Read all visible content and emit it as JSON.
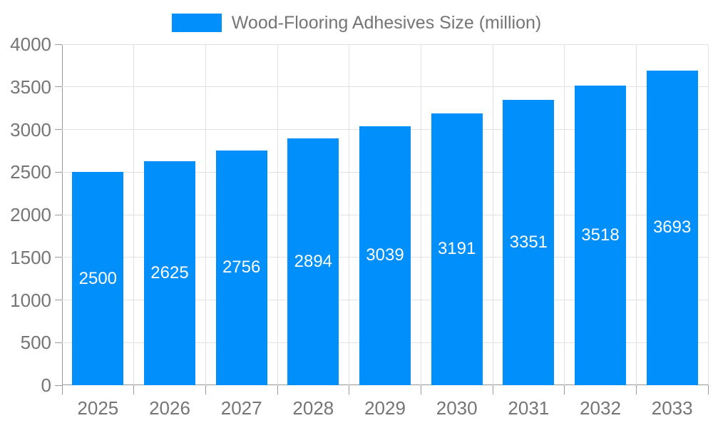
{
  "legend": {
    "label": "Wood-Flooring Adhesives Size (million)"
  },
  "colors": {
    "bar": "#008FFB",
    "grid": "#e2e2e2",
    "axis": "#9a9a9a",
    "axis_label": "#757575",
    "bar_label": "#ffffff",
    "background": "#ffffff"
  },
  "chart_data": {
    "type": "bar",
    "title": "Wood-Flooring Adhesives Size (million)",
    "categories": [
      "2025",
      "2026",
      "2027",
      "2028",
      "2029",
      "2030",
      "2031",
      "2032",
      "2033"
    ],
    "series": [
      {
        "name": "Wood-Flooring Adhesives Size (million)",
        "values": [
          2500,
          2625,
          2756,
          2894,
          3039,
          3191,
          3351,
          3518,
          3693
        ]
      }
    ],
    "values": [
      2500,
      2625,
      2756,
      2894,
      3039,
      3191,
      3351,
      3518,
      3693
    ],
    "bar_labels": [
      "2500",
      "2625",
      "2756",
      "2894",
      "3039",
      "3191",
      "3351",
      "3518",
      "3693"
    ],
    "xlabel": "",
    "ylabel": "",
    "ylim": [
      0,
      4000
    ],
    "yticks": [
      0,
      500,
      1000,
      1500,
      2000,
      2500,
      3000,
      3500,
      4000
    ],
    "grid": true,
    "legend_position": "top",
    "bar_value_position": "center"
  }
}
